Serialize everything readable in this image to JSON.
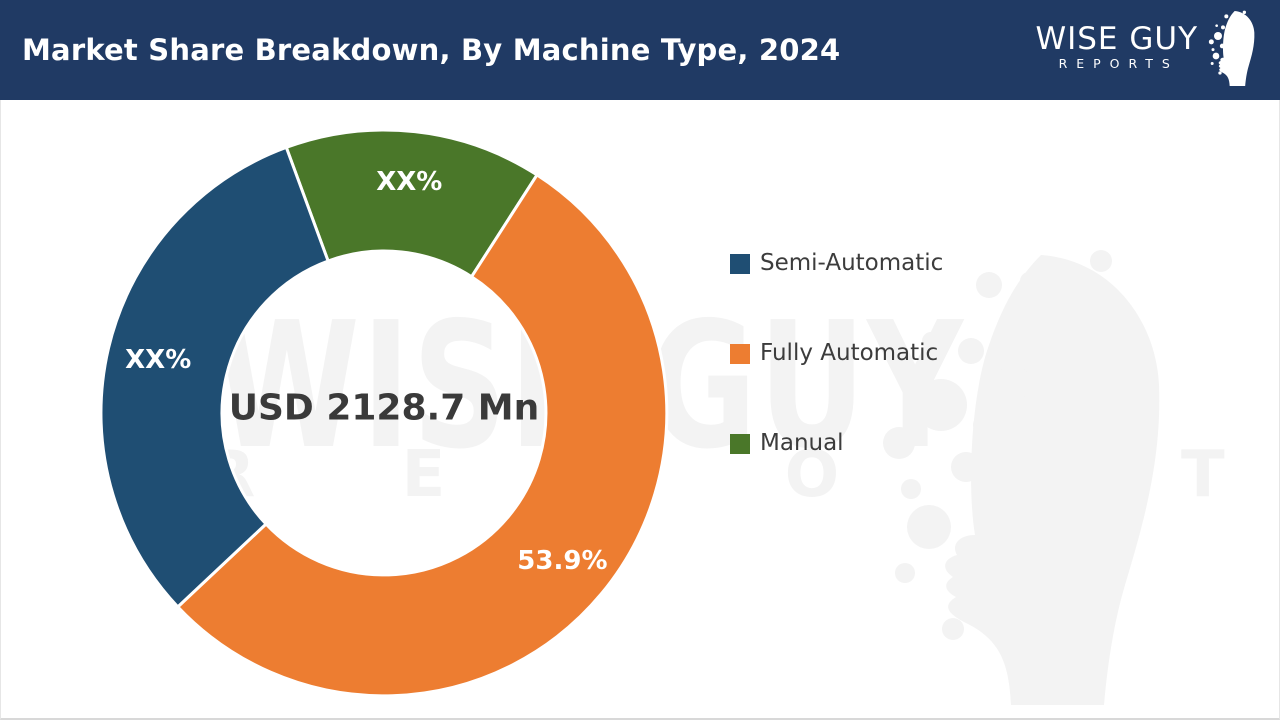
{
  "header": {
    "title": "Market Share Breakdown, By Machine Type, 2024",
    "logo": {
      "line1": "WISE GUY",
      "line2": "REPORTS"
    }
  },
  "watermark": {
    "line1": "WISE GUY",
    "line2": "R E P O R T S"
  },
  "chart_data": {
    "type": "pie",
    "subtype": "donut",
    "title": "Market Share Breakdown, By Machine Type, 2024",
    "center_label": "USD 2128.7 Mn",
    "units": "percent",
    "start_angle_deg": 110.2,
    "direction": "clockwise",
    "segments": [
      {
        "name": "Manual",
        "value_pct": 14.7,
        "display_label": "XX%",
        "color": "#4A7729"
      },
      {
        "name": "Fully Automatic",
        "value_pct": 53.9,
        "display_label": "53.9%",
        "color": "#ED7D31"
      },
      {
        "name": "Semi-Automatic",
        "value_pct": 31.4,
        "display_label": "XX%",
        "color": "#1F4E73"
      }
    ],
    "legend": [
      {
        "label": "Semi-Automatic",
        "color": "#1F4E73"
      },
      {
        "label": "Fully Automatic",
        "color": "#ED7D31"
      },
      {
        "label": "Manual",
        "color": "#4A7729"
      }
    ],
    "legend_position": "right"
  },
  "colors": {
    "header_bg": "#203A64",
    "semi_automatic": "#1F4E73",
    "fully_automatic": "#ED7D31",
    "manual": "#4A7729",
    "watermark": "#F3F3F3"
  }
}
